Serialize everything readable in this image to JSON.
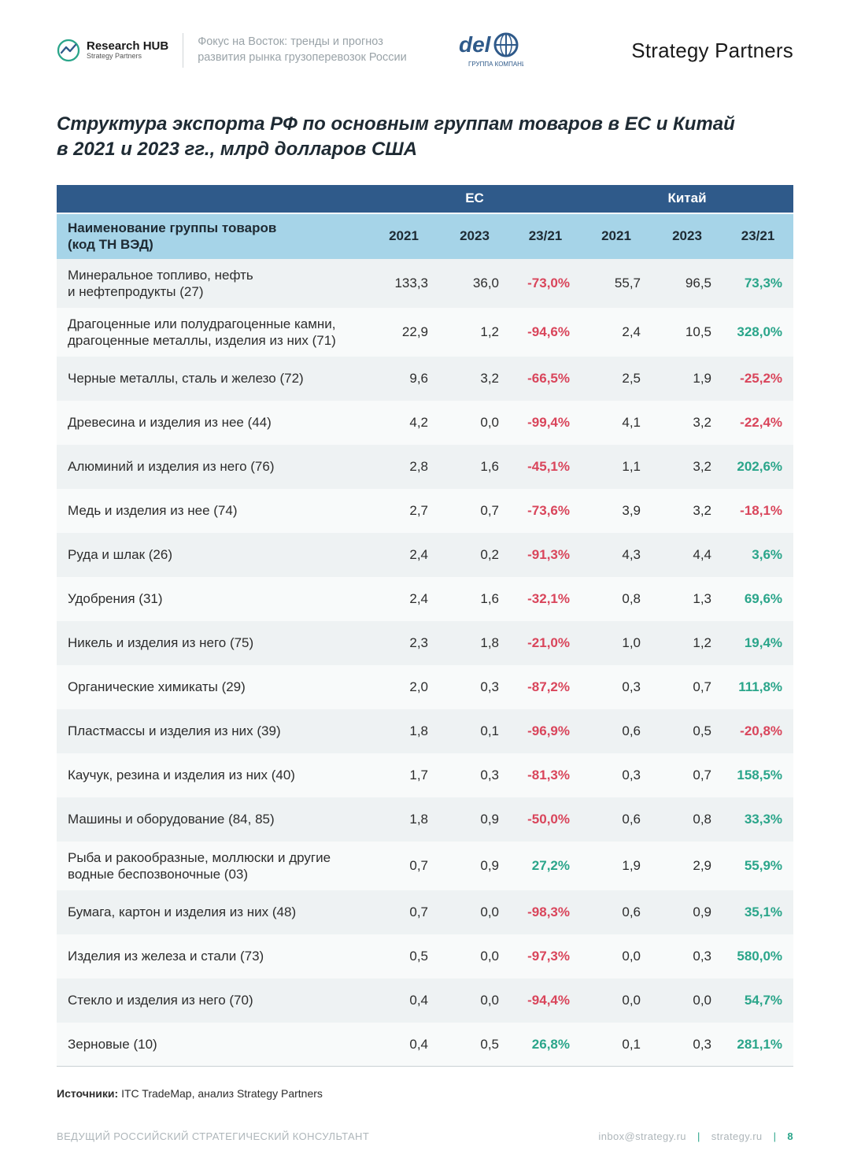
{
  "header": {
    "research_hub": {
      "title": "Research HUB",
      "sub": "Strategy Partners"
    },
    "tagline_l1": "Фокус на Восток: тренды и прогноз",
    "tagline_l2": "развития рынка грузоперевозок России",
    "delo_label": "ГРУППА КОМПАНИЙ",
    "sp_label": "Strategy Partners"
  },
  "title_l1": "Структура экспорта РФ по основным группам товаров в ЕС и Китай",
  "title_l2": "в 2021 и 2023 гг., млрд долларов США",
  "table": {
    "group_headers": {
      "blank": "",
      "ec": "ЕС",
      "cn": "Китай"
    },
    "sub_headers": {
      "name_l1": "Наименование группы товаров",
      "name_l2": "(код ТН ВЭД)",
      "y2021": "2021",
      "y2023": "2023",
      "ratio": "23/21"
    },
    "colors": {
      "header_bg": "#2f5a8a",
      "subheader_bg": "#a6d4e8",
      "row_odd": "#eef2f3",
      "row_even": "#f8fafa",
      "neg": "#d9455b",
      "pos": "#2aa58a"
    },
    "rows": [
      {
        "name": "Минеральное топливо, нефть\nи нефтепродукты (27)",
        "ec21": "133,3",
        "ec23": "36,0",
        "ecr": "-73,0%",
        "cn21": "55,7",
        "cn23": "96,5",
        "cnr": "73,3%",
        "tall": true
      },
      {
        "name": "Драгоценные или полудрагоценные камни, драгоценные металлы, изделия из них (71)",
        "ec21": "22,9",
        "ec23": "1,2",
        "ecr": "-94,6%",
        "cn21": "2,4",
        "cn23": "10,5",
        "cnr": "328,0%",
        "tall": true
      },
      {
        "name": "Черные металлы, сталь и железо (72)",
        "ec21": "9,6",
        "ec23": "3,2",
        "ecr": "-66,5%",
        "cn21": "2,5",
        "cn23": "1,9",
        "cnr": "-25,2%"
      },
      {
        "name": "Древесина и изделия из нее (44)",
        "ec21": "4,2",
        "ec23": "0,0",
        "ecr": "-99,4%",
        "cn21": "4,1",
        "cn23": "3,2",
        "cnr": "-22,4%"
      },
      {
        "name": "Алюминий и изделия из него (76)",
        "ec21": "2,8",
        "ec23": "1,6",
        "ecr": "-45,1%",
        "cn21": "1,1",
        "cn23": "3,2",
        "cnr": "202,6%"
      },
      {
        "name": "Медь и изделия из нее (74)",
        "ec21": "2,7",
        "ec23": "0,7",
        "ecr": "-73,6%",
        "cn21": "3,9",
        "cn23": "3,2",
        "cnr": "-18,1%"
      },
      {
        "name": "Руда и шлак (26)",
        "ec21": "2,4",
        "ec23": "0,2",
        "ecr": "-91,3%",
        "cn21": "4,3",
        "cn23": "4,4",
        "cnr": "3,6%"
      },
      {
        "name": "Удобрения (31)",
        "ec21": "2,4",
        "ec23": "1,6",
        "ecr": "-32,1%",
        "cn21": "0,8",
        "cn23": "1,3",
        "cnr": "69,6%"
      },
      {
        "name": "Никель и изделия из него (75)",
        "ec21": "2,3",
        "ec23": "1,8",
        "ecr": "-21,0%",
        "cn21": "1,0",
        "cn23": "1,2",
        "cnr": "19,4%"
      },
      {
        "name": "Органические химикаты (29)",
        "ec21": "2,0",
        "ec23": "0,3",
        "ecr": "-87,2%",
        "cn21": "0,3",
        "cn23": "0,7",
        "cnr": "111,8%"
      },
      {
        "name": "Пластмассы и изделия из них (39)",
        "ec21": "1,8",
        "ec23": "0,1",
        "ecr": "-96,9%",
        "cn21": "0,6",
        "cn23": "0,5",
        "cnr": "-20,8%"
      },
      {
        "name": "Каучук, резина и изделия из них (40)",
        "ec21": "1,7",
        "ec23": "0,3",
        "ecr": "-81,3%",
        "cn21": "0,3",
        "cn23": "0,7",
        "cnr": "158,5%"
      },
      {
        "name": "Машины и оборудование (84, 85)",
        "ec21": "1,8",
        "ec23": "0,9",
        "ecr": "-50,0%",
        "cn21": "0,6",
        "cn23": "0,8",
        "cnr": "33,3%"
      },
      {
        "name": "Рыба и ракообразные, моллюски и другие водные беспозвоночные (03)",
        "ec21": "0,7",
        "ec23": "0,9",
        "ecr": "27,2%",
        "cn21": "1,9",
        "cn23": "2,9",
        "cnr": "55,9%",
        "tall": true
      },
      {
        "name": "Бумага, картон и изделия из них (48)",
        "ec21": "0,7",
        "ec23": "0,0",
        "ecr": "-98,3%",
        "cn21": "0,6",
        "cn23": "0,9",
        "cnr": "35,1%"
      },
      {
        "name": "Изделия из железа и стали (73)",
        "ec21": "0,5",
        "ec23": "0,0",
        "ecr": "-97,3%",
        "cn21": "0,0",
        "cn23": "0,3",
        "cnr": "580,0%"
      },
      {
        "name": "Стекло и изделия из него (70)",
        "ec21": "0,4",
        "ec23": "0,0",
        "ecr": "-94,4%",
        "cn21": "0,0",
        "cn23": "0,0",
        "cnr": "54,7%"
      },
      {
        "name": "Зерновые (10)",
        "ec21": "0,4",
        "ec23": "0,5",
        "ecr": "26,8%",
        "cn21": "0,1",
        "cn23": "0,3",
        "cnr": "281,1%"
      }
    ]
  },
  "source": {
    "label": "Источники:",
    "text": " ITC TradeMap, анализ Strategy Partners"
  },
  "footer": {
    "tag": "ВЕДУЩИЙ РОССИЙСКИЙ СТРАТЕГИЧЕСКИЙ КОНСУЛЬТАНТ",
    "email": "inbox@strategy.ru",
    "site": "strategy.ru",
    "page": "8"
  }
}
